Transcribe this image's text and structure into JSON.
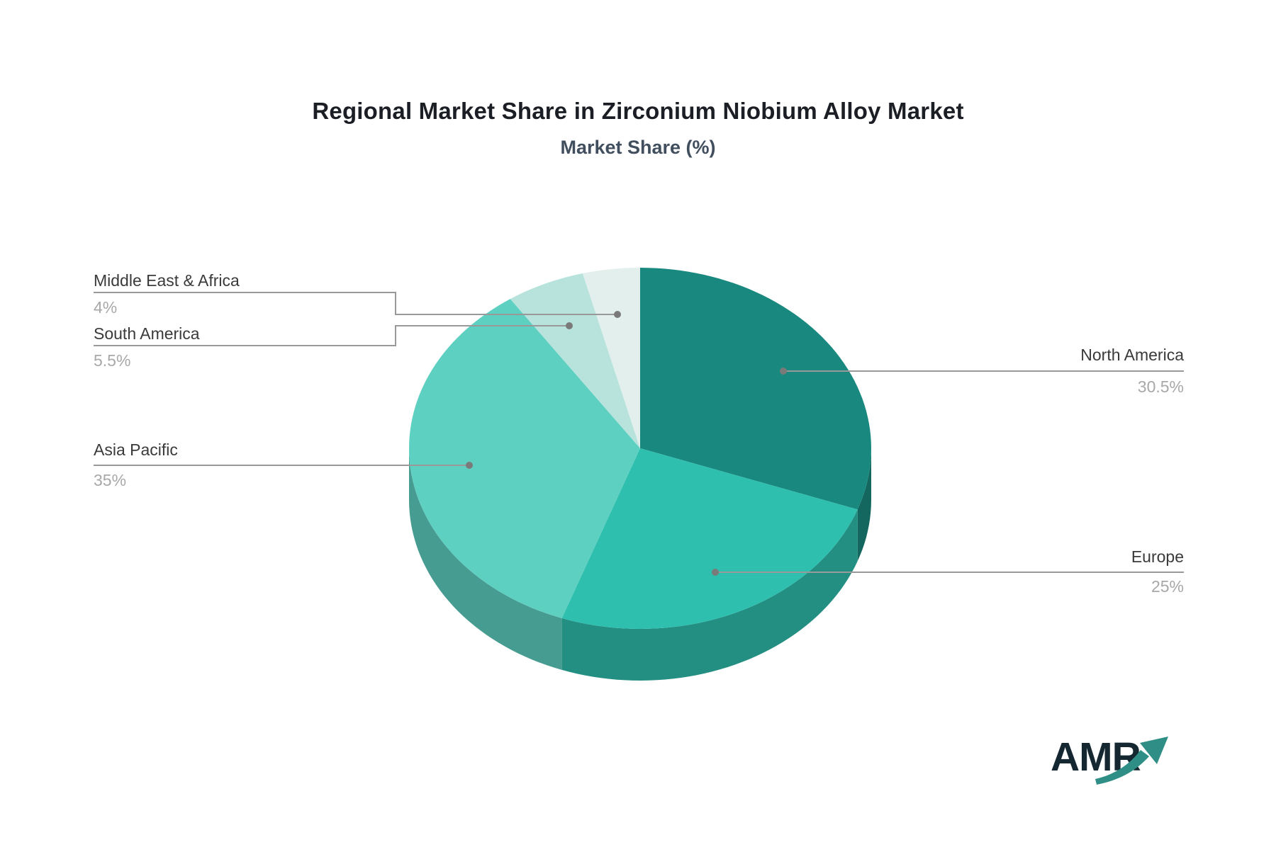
{
  "title": "Regional Market Share in Zirconium Niobium Alloy Market",
  "subtitle": "Market Share (%)",
  "logo": {
    "text": "AMR"
  },
  "chart_data": {
    "type": "pie",
    "title": "Regional Market Share in Zirconium Niobium Alloy Market",
    "subtitle": "Market Share (%)",
    "unit": "percent",
    "style": "3d",
    "start_angle_deg": 0,
    "direction": "clockwise",
    "legend_position": "outside-callouts",
    "slices": [
      {
        "label": "North America",
        "value": 30.5,
        "pct_label": "30.5%",
        "color": "#19897f"
      },
      {
        "label": "Europe",
        "value": 25,
        "pct_label": "25%",
        "color": "#2ebfae"
      },
      {
        "label": "Asia Pacific",
        "value": 35,
        "pct_label": "35%",
        "color": "#5ed0c1"
      },
      {
        "label": "South America",
        "value": 5.5,
        "pct_label": "5.5%",
        "color": "#b7e3dc"
      },
      {
        "label": "Middle East & Africa",
        "value": 4,
        "pct_label": "4%",
        "color": "#e2efec"
      }
    ],
    "colors": {
      "leader_line": "#999999",
      "dot": "#7a7a7a",
      "label_text": "#3a3a3a",
      "pct_text": "#a8a8a8",
      "logo_text": "#152730",
      "logo_arrow": "#2f8f86"
    }
  }
}
